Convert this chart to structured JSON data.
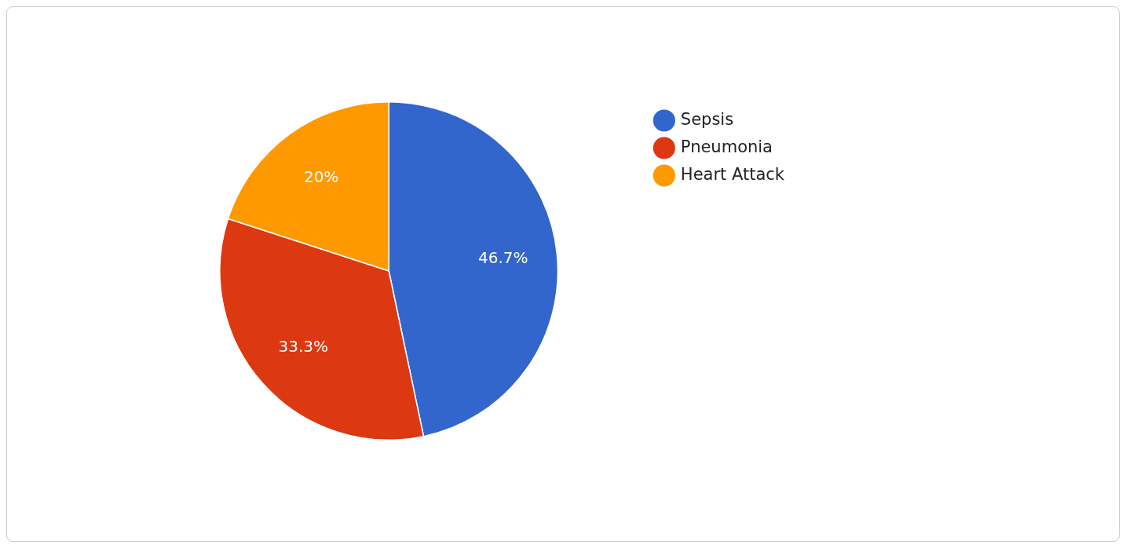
{
  "chart_data": {
    "type": "pie",
    "categories": [
      "Sepsis",
      "Pneumonia",
      "Heart Attack"
    ],
    "values": [
      46.7,
      33.3,
      20
    ],
    "colors": [
      "#3366cc",
      "#dc3912",
      "#ff9900"
    ],
    "value_labels": [
      "46.7%",
      "33.3%",
      "20%"
    ],
    "legend": "top right"
  }
}
